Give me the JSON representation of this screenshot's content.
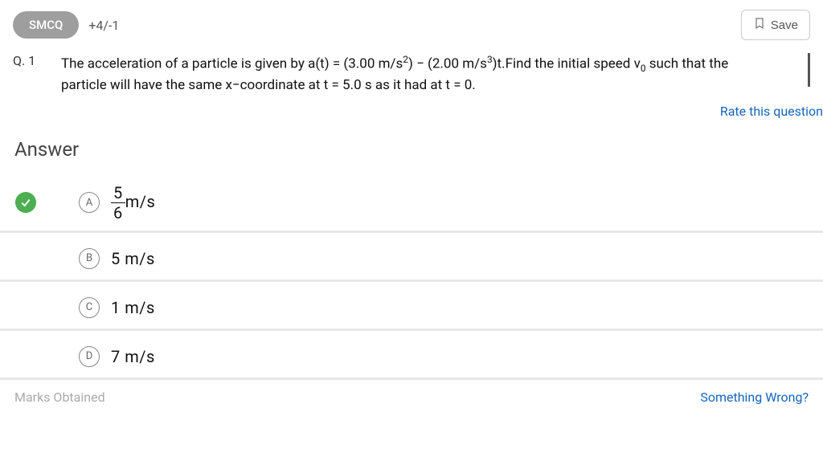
{
  "header": {
    "badge": "SMCQ",
    "marks": "+4/-1",
    "save_label": "Save"
  },
  "question": {
    "number": "Q. 1",
    "text_html": "The acceleration of a particle is given by a(t) = (3.00 m/s<sup>2</sup>) − (2.00 m/s<sup>3</sup>)t.Find the initial speed v<sub>0</sub> such that the particle will have the same x−coordinate at t = 5.0 s as it had at t = 0.",
    "rate_label": "Rate this question"
  },
  "answer": {
    "heading": "Answer",
    "options": [
      {
        "letter": "A",
        "correct": true,
        "html": "<span class=\"frac\"><span class=\"num\">5</span><span class=\"den\">6</span></span>m/s"
      },
      {
        "letter": "B",
        "correct": false,
        "html": "5 m/s"
      },
      {
        "letter": "C",
        "correct": false,
        "html": "1 m/s"
      },
      {
        "letter": "D",
        "correct": false,
        "html": "7 m/s"
      }
    ]
  },
  "footer": {
    "left": "Marks Obtained",
    "right": "Something Wrong?"
  },
  "colors": {
    "badge_bg": "#9e9e9e",
    "correct_bg": "#4caf50",
    "link_color": "#1565c0"
  }
}
